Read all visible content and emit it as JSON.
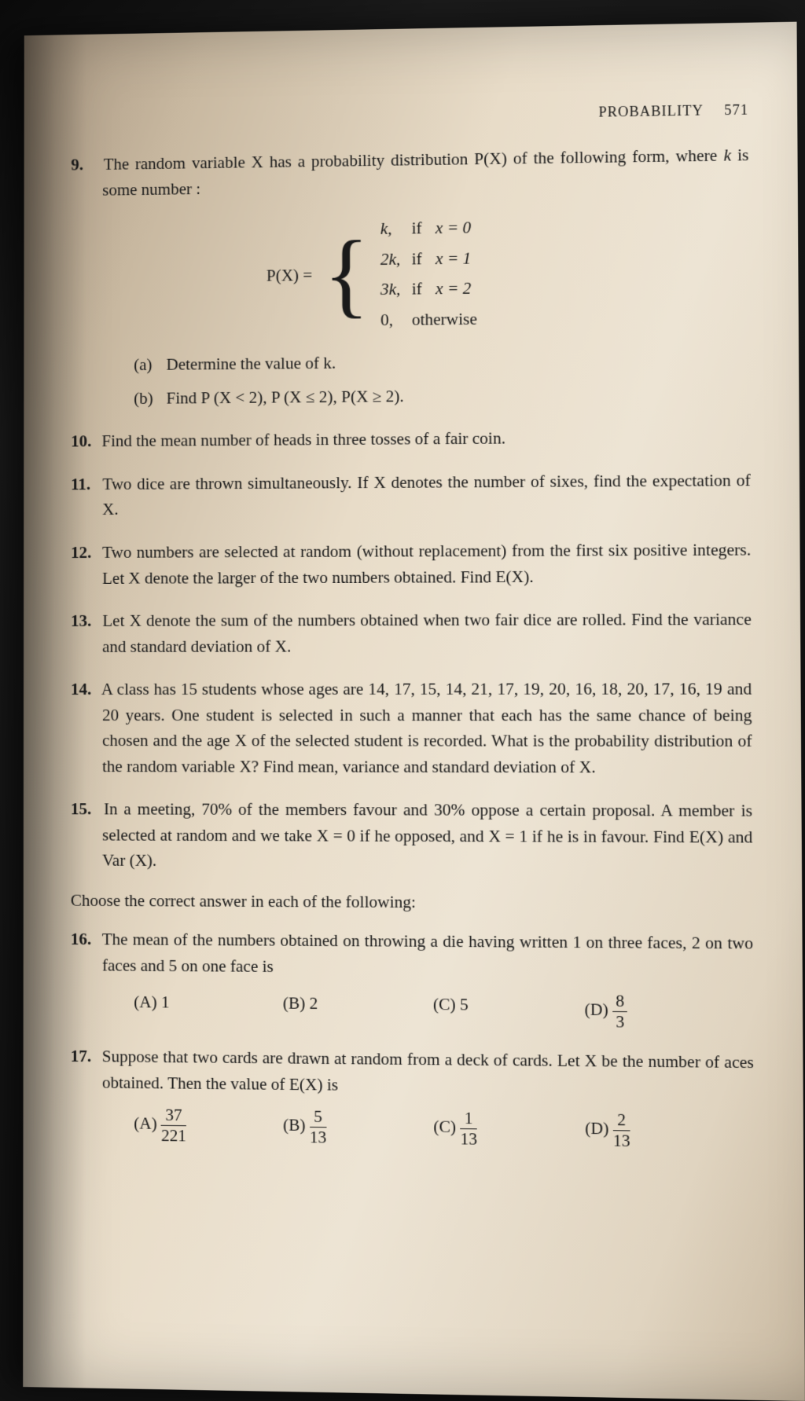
{
  "header": {
    "chapter": "PROBABILITY",
    "page_no": "571"
  },
  "q9": {
    "num": "9.",
    "text_a": "The random variable X has a probability distribution P(X) of the following form, where ",
    "k": "k",
    "text_b": " is some number :",
    "fn": "P(X) = ",
    "rows": [
      {
        "v": "k,",
        "c": "if",
        "x": "x = 0"
      },
      {
        "v": "2k,",
        "c": "if",
        "x": "x = 1"
      },
      {
        "v": "3k,",
        "c": "if",
        "x": "x = 2"
      },
      {
        "v": "0,",
        "c": "otherwise",
        "x": ""
      }
    ],
    "a": {
      "lbl": "(a)",
      "txt": "Determine the value of k."
    },
    "b": {
      "lbl": "(b)",
      "txt": "Find P (X < 2),  P (X ≤ 2), P(X ≥ 2)."
    }
  },
  "q10": {
    "num": "10.",
    "txt": "Find the mean number of heads in three tosses of a fair coin."
  },
  "q11": {
    "num": "11.",
    "txt": "Two dice are thrown simultaneously. If X denotes the number of sixes, find the expectation of X."
  },
  "q12": {
    "num": "12.",
    "txt": "Two numbers are selected at random (without replacement) from the first six positive integers. Let X denote the larger of the two numbers obtained. Find E(X)."
  },
  "q13": {
    "num": "13.",
    "txt": "Let X denote the sum of the numbers obtained when two fair dice are rolled. Find the variance and standard deviation of X."
  },
  "q14": {
    "num": "14.",
    "txt": "A class has 15 students whose ages are 14, 17, 15, 14, 21, 17, 19, 20, 16, 18, 20, 17, 16, 19 and 20 years. One student is selected in such a manner that each has the same chance of being chosen and the age X of the selected student is recorded. What is the probability distribution of the random variable X? Find mean, variance and standard deviation of X."
  },
  "q15": {
    "num": "15.",
    "txt": "In a meeting, 70% of the members favour and 30% oppose a certain proposal. A member is selected at random and we take X = 0 if he opposed, and X = 1 if he is in favour. Find E(X) and Var (X)."
  },
  "instr": "Choose the correct answer in each of the following:",
  "q16": {
    "num": "16.",
    "txt": "The mean of the numbers obtained on throwing a die having written 1 on three faces, 2 on two faces and 5 on one face is",
    "opts": {
      "A": {
        "lbl": "(A)",
        "v": "1"
      },
      "B": {
        "lbl": "(B)",
        "v": "2"
      },
      "C": {
        "lbl": "(C)",
        "v": "5"
      },
      "D": {
        "lbl": "(D)",
        "n": "8",
        "d": "3"
      }
    }
  },
  "q17": {
    "num": "17.",
    "txt": "Suppose that two cards are drawn at random from a deck of cards. Let X be the number of aces obtained. Then the value of E(X) is",
    "opts": {
      "A": {
        "lbl": "(A)",
        "n": "37",
        "d": "221"
      },
      "B": {
        "lbl": "(B)",
        "n": "5",
        "d": "13"
      },
      "C": {
        "lbl": "(C)",
        "n": "1",
        "d": "13"
      },
      "D": {
        "lbl": "(D)",
        "n": "2",
        "d": "13"
      }
    }
  }
}
